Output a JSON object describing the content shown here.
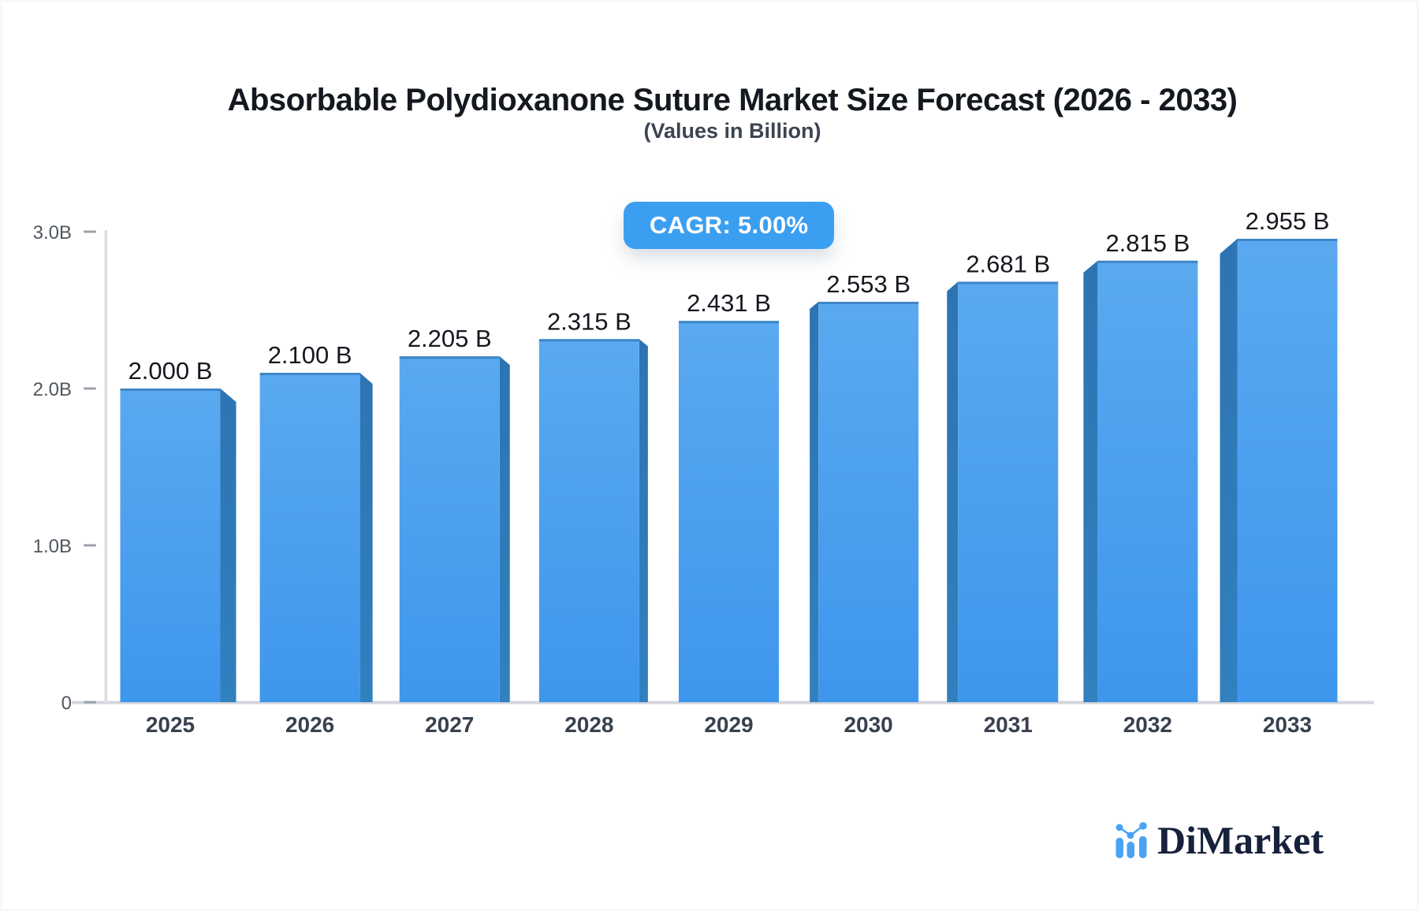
{
  "header": {
    "title": "Absorbable Polydioxanone Suture Market Size Forecast (2026 - 2033)",
    "subtitle": "(Values in Billion)"
  },
  "badge": {
    "label": "CAGR: 5.00%",
    "bg_color": "#3b9ff1",
    "text_color": "#ffffff"
  },
  "logo": {
    "text": "DiMarket",
    "icon": "bar-line-chart-icon",
    "text_color": "#16213a",
    "icon_color": "#4aa2f5"
  },
  "chart_data": {
    "type": "bar",
    "title": "Absorbable Polydioxanone Suture Market Size Forecast (2026 - 2033)",
    "subtitle": "(Values in Billion)",
    "unit": "Billion USD",
    "annotation": "CAGR: 5.00%",
    "categories": [
      "2025",
      "2026",
      "2027",
      "2028",
      "2029",
      "2030",
      "2031",
      "2032",
      "2033"
    ],
    "values": [
      2.0,
      2.1,
      2.205,
      2.315,
      2.431,
      2.553,
      2.681,
      2.815,
      2.955
    ],
    "value_labels": [
      "2.000 B",
      "2.100 B",
      "2.205 B",
      "2.315 B",
      "2.431 B",
      "2.553 B",
      "2.681 B",
      "2.815 B",
      "2.955 B"
    ],
    "xlabel": "",
    "ylabel": "",
    "ylim": [
      0,
      3.0
    ],
    "y_ticks": [
      {
        "value": 0,
        "label": "0"
      },
      {
        "value": 1.0,
        "label": "1.0B"
      },
      {
        "value": 2.0,
        "label": "2.0B"
      },
      {
        "value": 3.0,
        "label": "3.0B"
      }
    ],
    "grid": false,
    "legend": false,
    "style_3d": true,
    "colors": {
      "bar_front_top": "#5aa9f0",
      "bar_front_bottom": "#3e96ed",
      "bar_side_top": "#2d74b2",
      "bar_side_bottom": "#3180bf",
      "bar_top_edge": "#3e86c6",
      "axis_line": "#dadde2",
      "baseline": "#d3d6db",
      "tick": "#9aa1a9",
      "y_label": "#50575f",
      "x_label": "#39414f",
      "value_label": "#14181f"
    }
  }
}
